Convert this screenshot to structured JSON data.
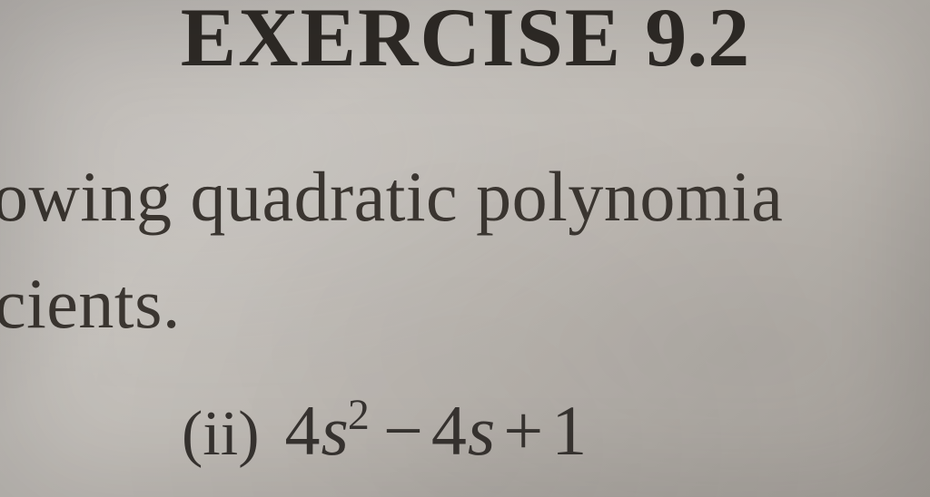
{
  "page": {
    "background_color": "#bfbab4",
    "text_color": "#363230"
  },
  "heading": {
    "prefix": "EXERCISE",
    "number": "9.2",
    "fontsize": 92,
    "fontweight": 700,
    "color": "#2e2a26"
  },
  "body": {
    "line1": "owing quadratic polynomia",
    "line2": "cients.",
    "fontsize": 78,
    "color": "#3a3530"
  },
  "item": {
    "label": "(ii)",
    "expression": {
      "coef1": "4",
      "var1": "s",
      "exp1": "2",
      "op1": "−",
      "coef2": "4",
      "var2": "s",
      "op2": "+",
      "const": "1"
    },
    "fontsize": 78,
    "color": "#373330"
  }
}
